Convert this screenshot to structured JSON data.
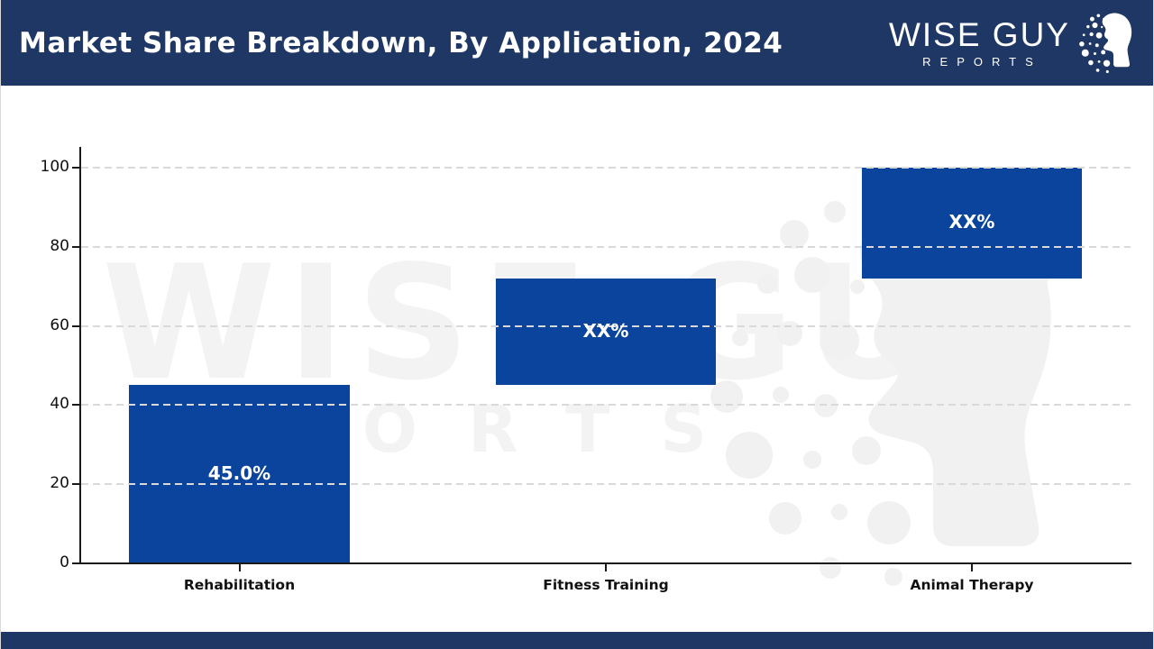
{
  "header": {
    "title": "Market Share Breakdown, By Application, 2024",
    "logo": {
      "line1": "WISE GUY",
      "line2": "REPORTS"
    }
  },
  "watermark": {
    "line1": "WISE GUY",
    "line2": "PORTS"
  },
  "chart_data": {
    "type": "bar",
    "subtype": "waterfall",
    "title": "Market Share Breakdown, By Application, 2024",
    "categories": [
      "Rehabilitation",
      "Fitness Training",
      "Animal Therapy"
    ],
    "segments": [
      {
        "category": "Rehabilitation",
        "start": 0,
        "end": 45,
        "label": "45.0%"
      },
      {
        "category": "Fitness Training",
        "start": 45,
        "end": 72,
        "label": "XX%"
      },
      {
        "category": "Animal Therapy",
        "start": 72,
        "end": 100,
        "label": "XX%"
      }
    ],
    "yticks": [
      0,
      20,
      40,
      60,
      80,
      100
    ],
    "ylim": [
      0,
      100
    ],
    "xlabel": "",
    "ylabel": "",
    "grid": "horizontal-dashed",
    "legend": "none",
    "bar_color": "#0a449c",
    "label_color": "#ffffff"
  },
  "colors": {
    "band_navy": "#1e3764",
    "bar_blue": "#0a449c",
    "gridline": "#d9d9d9",
    "watermark": "#f3f3f3",
    "axis": "#1a1a1a"
  }
}
